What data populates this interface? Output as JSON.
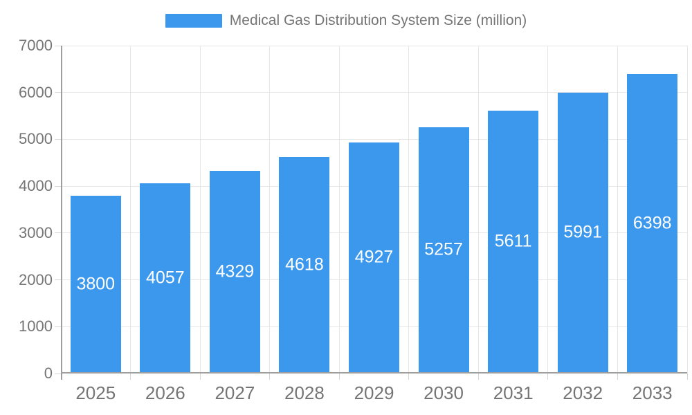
{
  "chart_data": {
    "type": "bar",
    "title": "Medical Gas Distribution System Size (million)",
    "categories": [
      "2025",
      "2026",
      "2027",
      "2028",
      "2029",
      "2030",
      "2031",
      "2032",
      "2033"
    ],
    "values": [
      3800,
      4057,
      4329,
      4618,
      4927,
      5257,
      5611,
      5991,
      6398
    ],
    "xlabel": "",
    "ylabel": "",
    "ylim": [
      0,
      7000
    ],
    "y_ticks": [
      0,
      1000,
      2000,
      3000,
      4000,
      5000,
      6000,
      7000
    ],
    "grid": true,
    "legend_position": "top",
    "value_labels": "centered-inside-bars"
  },
  "legend": {
    "label": "Medical Gas Distribution System Size (million)"
  },
  "colors": {
    "bar": "#3b98ec",
    "grid_line": "#e6e6e6",
    "axis_line": "#9e9e9e",
    "tick_mark": "#d6d6d6",
    "axis_label": "#757575",
    "value_label": "#ffffff",
    "background": "#ffffff"
  }
}
